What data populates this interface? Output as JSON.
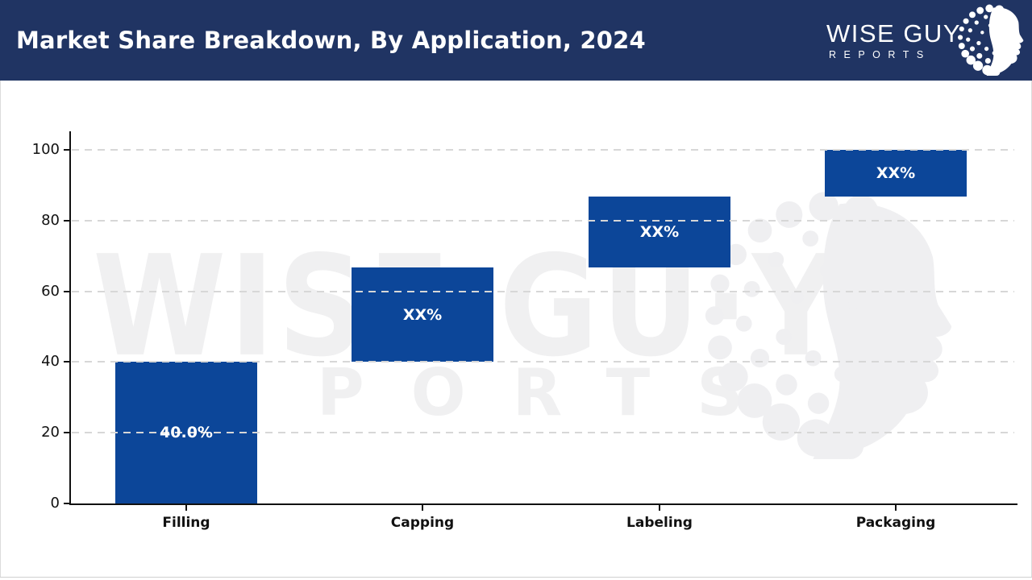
{
  "header": {
    "title": "Market Share Breakdown, By Application, 2024",
    "brand_line1": "WISE GUY",
    "brand_line2": "REPORTS"
  },
  "watermark": {
    "line1": "WISE GU·Y",
    "line2": "PORTS"
  },
  "chart_data": {
    "type": "bar",
    "subtype": "waterfall",
    "title": "Market Share Breakdown, By Application, 2024",
    "categories": [
      "Filling",
      "Capping",
      "Labeling",
      "Packaging"
    ],
    "series": [
      {
        "name": "Market Share",
        "bases": [
          0,
          40,
          66.7,
          86.7
        ],
        "tops": [
          40,
          66.7,
          86.7,
          100
        ],
        "values": [
          40.0,
          26.7,
          20.0,
          13.3
        ]
      }
    ],
    "bar_labels": [
      "40.0%",
      "XX%",
      "XX%",
      "XX%"
    ],
    "yticks": [
      0,
      20,
      40,
      60,
      80,
      100
    ],
    "ylim": [
      0,
      100
    ],
    "xlabel": "",
    "ylabel": "",
    "legend": "none",
    "grid": "horizontal-dashed",
    "colors": {
      "bar": "#0c4699",
      "bar_label": "#ffffff",
      "grid": "#d7d7d7",
      "axis": "#111111",
      "header_bg": "#203463",
      "watermark": "#f0f0f1"
    }
  }
}
